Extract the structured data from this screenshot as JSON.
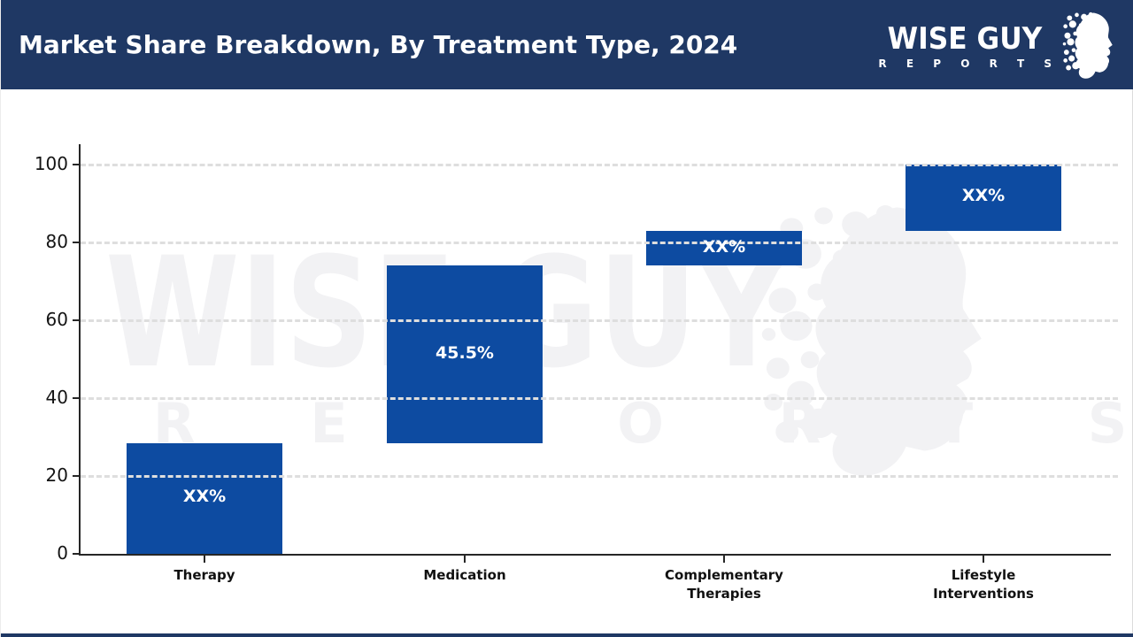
{
  "header": {
    "title": "Market Share Breakdown, By Treatment Type, 2024",
    "logo": {
      "line1": "WISE GUY",
      "line2": "R E P O R T S"
    }
  },
  "watermark": {
    "line1": "WISE GUY",
    "line2": "R E P O R T S"
  },
  "colors": {
    "header_bg": "#1f3864",
    "bar": "#0d4ba1",
    "gridline": "#dedede",
    "axis": "#262626",
    "bar_label_text": "#ffffff",
    "watermark": "#f2f2f4"
  },
  "chart_data": {
    "type": "bar",
    "subtype": "waterfall",
    "title": "Market Share Breakdown, By Treatment Type, 2024",
    "categories": [
      "Therapy",
      "Medication",
      "Complementary\nTherapies",
      "Lifestyle\nInterventions"
    ],
    "segments": [
      {
        "category": "Therapy",
        "label": "XX%",
        "start": 0,
        "end": 28.5
      },
      {
        "category": "Medication",
        "label": "45.5%",
        "start": 28.5,
        "end": 74
      },
      {
        "category": "Complementary Therapies",
        "label": "XX%",
        "start": 74,
        "end": 83
      },
      {
        "category": "Lifestyle Interventions",
        "label": "XX%",
        "start": 83,
        "end": 100
      }
    ],
    "y_ticks": [
      0,
      20,
      40,
      60,
      80,
      100
    ],
    "ylim": [
      0,
      100
    ],
    "xlabel": "",
    "ylabel": "",
    "grid": "horizontal-dashed",
    "legend": "none",
    "bar_color": "#0d4ba1"
  }
}
